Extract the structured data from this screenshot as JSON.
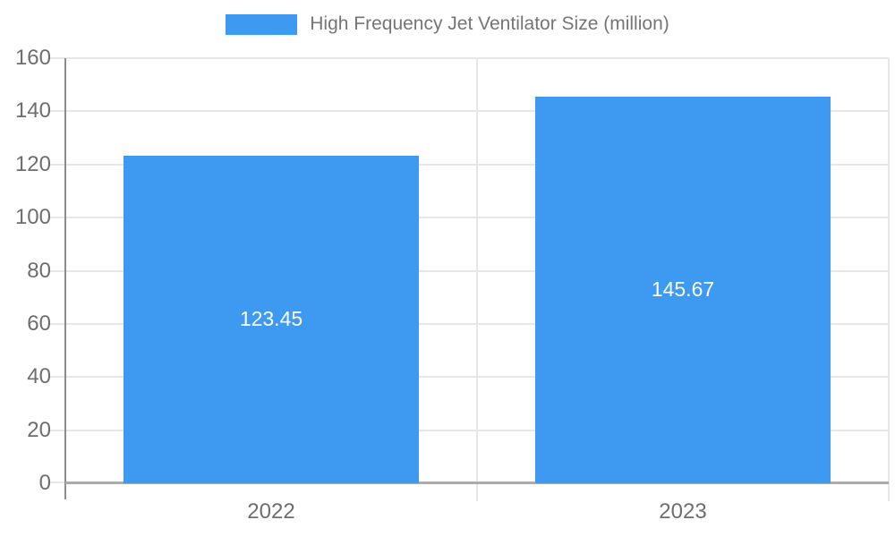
{
  "chart_data": {
    "type": "bar",
    "title": "High Frequency Jet Ventilator Size (million)",
    "legend_entries": [
      "High Frequency Jet Ventilator Size (million)"
    ],
    "legend_position": "top-center",
    "categories": [
      "2022",
      "2023"
    ],
    "series": [
      {
        "name": "High Frequency Jet Ventilator Size (million)",
        "values": [
          123.45,
          145.67
        ]
      }
    ],
    "value_labels": [
      "123.45",
      "145.67"
    ],
    "xlabel": "",
    "ylabel": "",
    "ylim": [
      0,
      160
    ],
    "yticks": [
      0,
      20,
      40,
      60,
      80,
      100,
      120,
      140,
      160
    ],
    "grid": true
  },
  "colors": {
    "bar": "#3D9AF0",
    "value_label_text": "#ffffff",
    "axis_text": "#6e6e6e",
    "title_text": "#757575",
    "grid_line": "#e7e7e7",
    "y_axis_line": "#8c8c8c",
    "x_axis_line": "#ababab",
    "background": "#ffffff"
  }
}
